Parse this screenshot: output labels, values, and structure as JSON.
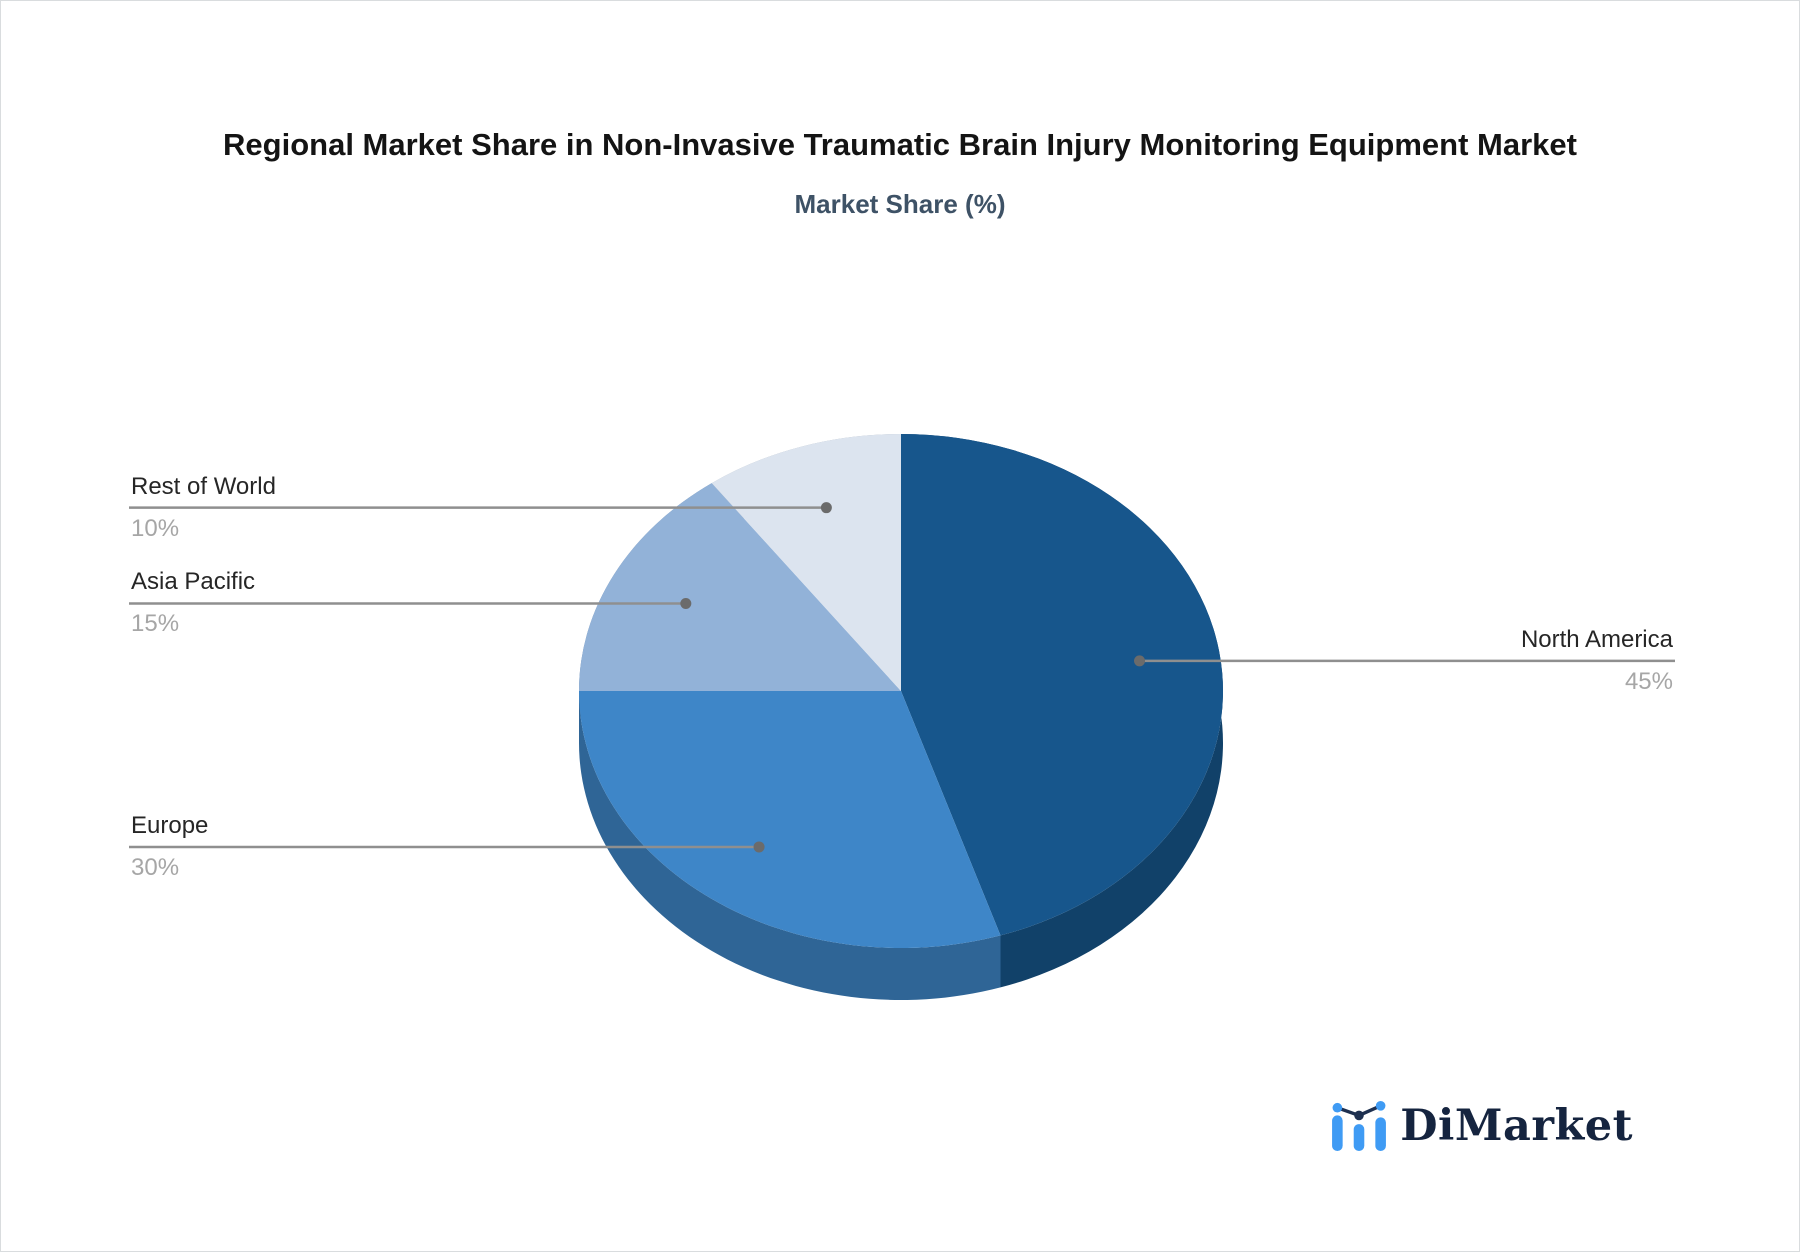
{
  "page": {
    "background": "#ffffff",
    "border_color": "#d9dcde"
  },
  "chart_data": {
    "type": "pie",
    "style": "3d",
    "title": "Regional Market Share in Non-Invasive Traumatic Brain Injury Monitoring Equipment Market",
    "subtitle": "Market Share (%)",
    "unit": "%",
    "direction": "clockwise",
    "start_angle_deg": 0,
    "categories": [
      "North America",
      "Europe",
      "Asia Pacific",
      "Rest of World"
    ],
    "values": [
      45,
      30,
      15,
      10
    ],
    "labels": [
      "45%",
      "30%",
      "15%",
      "10%"
    ],
    "colors": [
      "#17568C",
      "#3E86C8",
      "#92B2D8",
      "#DCE4EF"
    ],
    "label_text_color": "#262626",
    "pct_text_color": "#A6A6A6",
    "leader_line_color": "#8F8F8F",
    "leader_dot_color": "#6B6B6B",
    "legend_position": "callout-labels",
    "subtitle_color": "#3E5266"
  },
  "brand": {
    "name": "DiMarket",
    "icon": "bar-chart-logo-icon",
    "text_color": "#15243F",
    "accent_color": "#3F9BF4",
    "navy_color": "#1E3050"
  }
}
